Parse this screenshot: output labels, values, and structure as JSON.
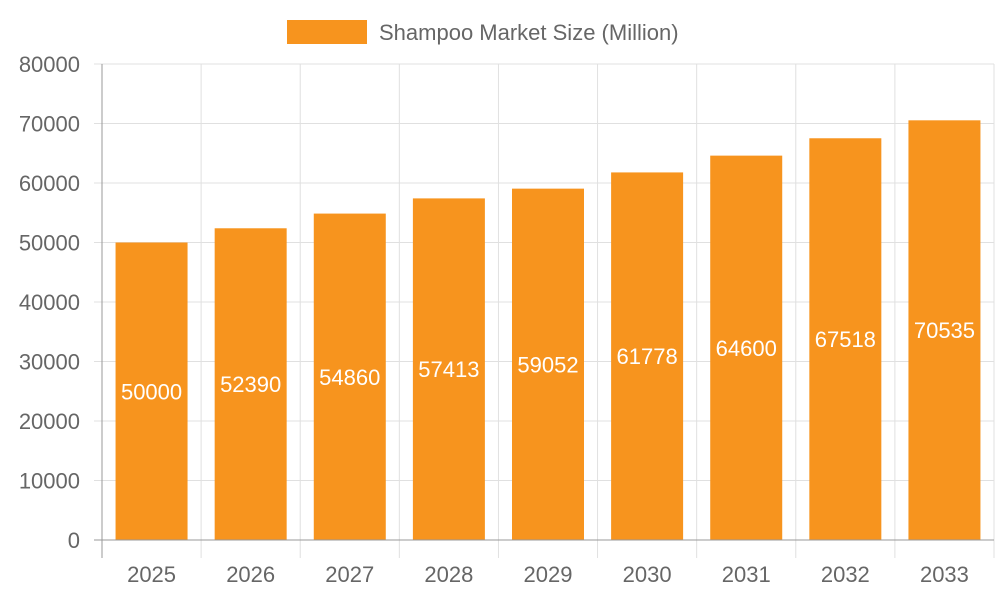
{
  "chart_data": {
    "type": "bar",
    "categories": [
      "2025",
      "2026",
      "2027",
      "2028",
      "2029",
      "2030",
      "2031",
      "2032",
      "2033"
    ],
    "series": [
      {
        "name": "Shampoo Market Size (Million)",
        "values": [
          50000,
          52390,
          54860,
          57413,
          59052,
          61778,
          64600,
          67518,
          70535
        ],
        "color": "#F7941E"
      }
    ],
    "ylim": [
      0,
      80000
    ],
    "yticks": [
      0,
      10000,
      20000,
      30000,
      40000,
      50000,
      60000,
      70000,
      80000
    ],
    "grid": true,
    "legend_position": "top-center",
    "data_labels": true,
    "colors": {
      "grid": "#e0e0e0",
      "axis": "#999999",
      "text": "#666666",
      "label": "#ffffff"
    }
  }
}
